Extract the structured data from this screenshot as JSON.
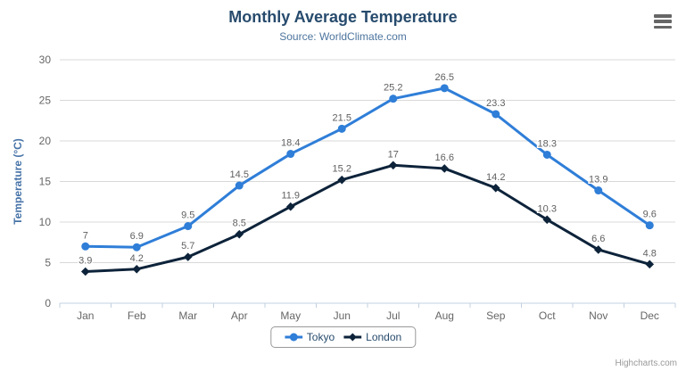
{
  "header": {
    "title": "Monthly Average Temperature",
    "subtitle": "Source: WorldClimate.com"
  },
  "export_menu": {
    "icon": "hamburger-menu"
  },
  "credits": {
    "label": "Highcharts.com"
  },
  "chart_data": {
    "type": "line",
    "title": "Monthly Average Temperature",
    "subtitle": "Source: WorldClimate.com",
    "categories": [
      "Jan",
      "Feb",
      "Mar",
      "Apr",
      "May",
      "Jun",
      "Jul",
      "Aug",
      "Sep",
      "Oct",
      "Nov",
      "Dec"
    ],
    "series": [
      {
        "name": "Tokyo",
        "color": "#2f7ed8",
        "marker": "circle",
        "values": [
          7,
          6.9,
          9.5,
          14.5,
          18.4,
          21.5,
          25.2,
          26.5,
          23.3,
          18.3,
          13.9,
          9.6
        ]
      },
      {
        "name": "London",
        "color": "#0d233a",
        "marker": "diamond",
        "values": [
          3.9,
          4.2,
          5.7,
          8.5,
          11.9,
          15.2,
          17,
          16.6,
          14.2,
          10.3,
          6.6,
          4.8
        ]
      }
    ],
    "xlabel": "",
    "ylabel": "Temperature (°C)",
    "ylim": [
      0,
      30
    ],
    "ytick_step": 5,
    "grid": true,
    "data_labels": true,
    "legend_position": "bottom-center"
  },
  "colors": {
    "title": "#274b6d",
    "subtitle": "#4d759e",
    "axis_label": "#666666",
    "y_axis_title": "#4572a7",
    "gridline": "#d8d8d8",
    "axis_line": "#c0d0e0",
    "data_label": "#606060",
    "legend_text": "#274b6d",
    "credits": "#999999",
    "menu_icon": "#666666"
  }
}
